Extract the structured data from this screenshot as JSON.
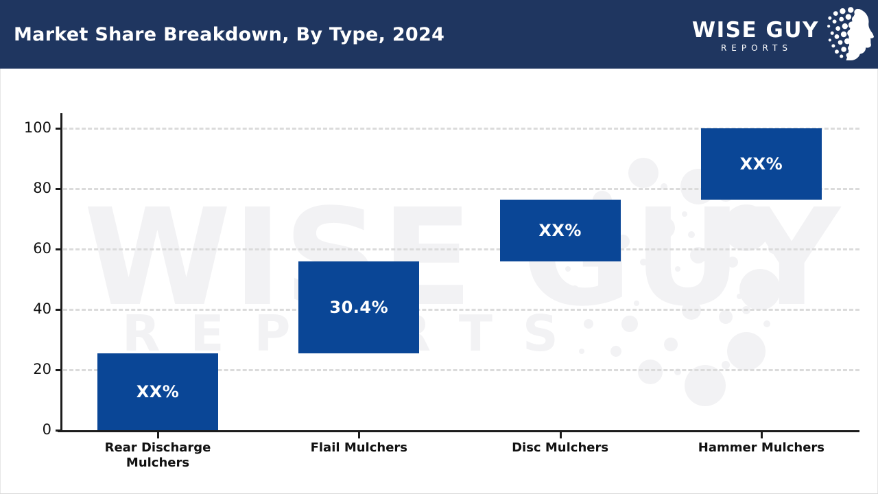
{
  "header": {
    "title": "Market Share Breakdown, By Type, 2024",
    "logo": {
      "line1": "WISE GUY",
      "line2": "REPORTS"
    }
  },
  "watermark": {
    "line1": "WISE GUY",
    "line2": "REPORTS"
  },
  "chart_data": {
    "type": "bar",
    "variant": "floating_segment_waterfall",
    "title": "Market Share Breakdown, By Type, 2024",
    "categories": [
      "Rear Discharge Mulchers",
      "Flail Mulchers",
      "Disc Mulchers",
      "Hammer Mulchers"
    ],
    "bars": [
      {
        "category": "Rear Discharge Mulchers",
        "label": "XX%",
        "start": 0,
        "end": 25.5
      },
      {
        "category": "Flail Mulchers",
        "label": "30.4%",
        "start": 25.5,
        "end": 55.9
      },
      {
        "category": "Disc Mulchers",
        "label": "XX%",
        "start": 55.9,
        "end": 76.3
      },
      {
        "category": "Hammer Mulchers",
        "label": "XX%",
        "start": 76.3,
        "end": 100
      }
    ],
    "xlabel": "",
    "ylabel": "",
    "ylim": [
      0,
      105
    ],
    "yticks": [
      0,
      20,
      40,
      60,
      80,
      100
    ],
    "grid": "horizontal-dashed",
    "legend": "none",
    "colors": {
      "bar": "#0A4696",
      "bar_label": "#FFFFFF",
      "header_bg": "#1F3660",
      "header_text": "#FFFFFF",
      "gridline": "#DBDBDB",
      "axis": "#1C1C1C",
      "watermark": "#F2F2F4"
    }
  }
}
